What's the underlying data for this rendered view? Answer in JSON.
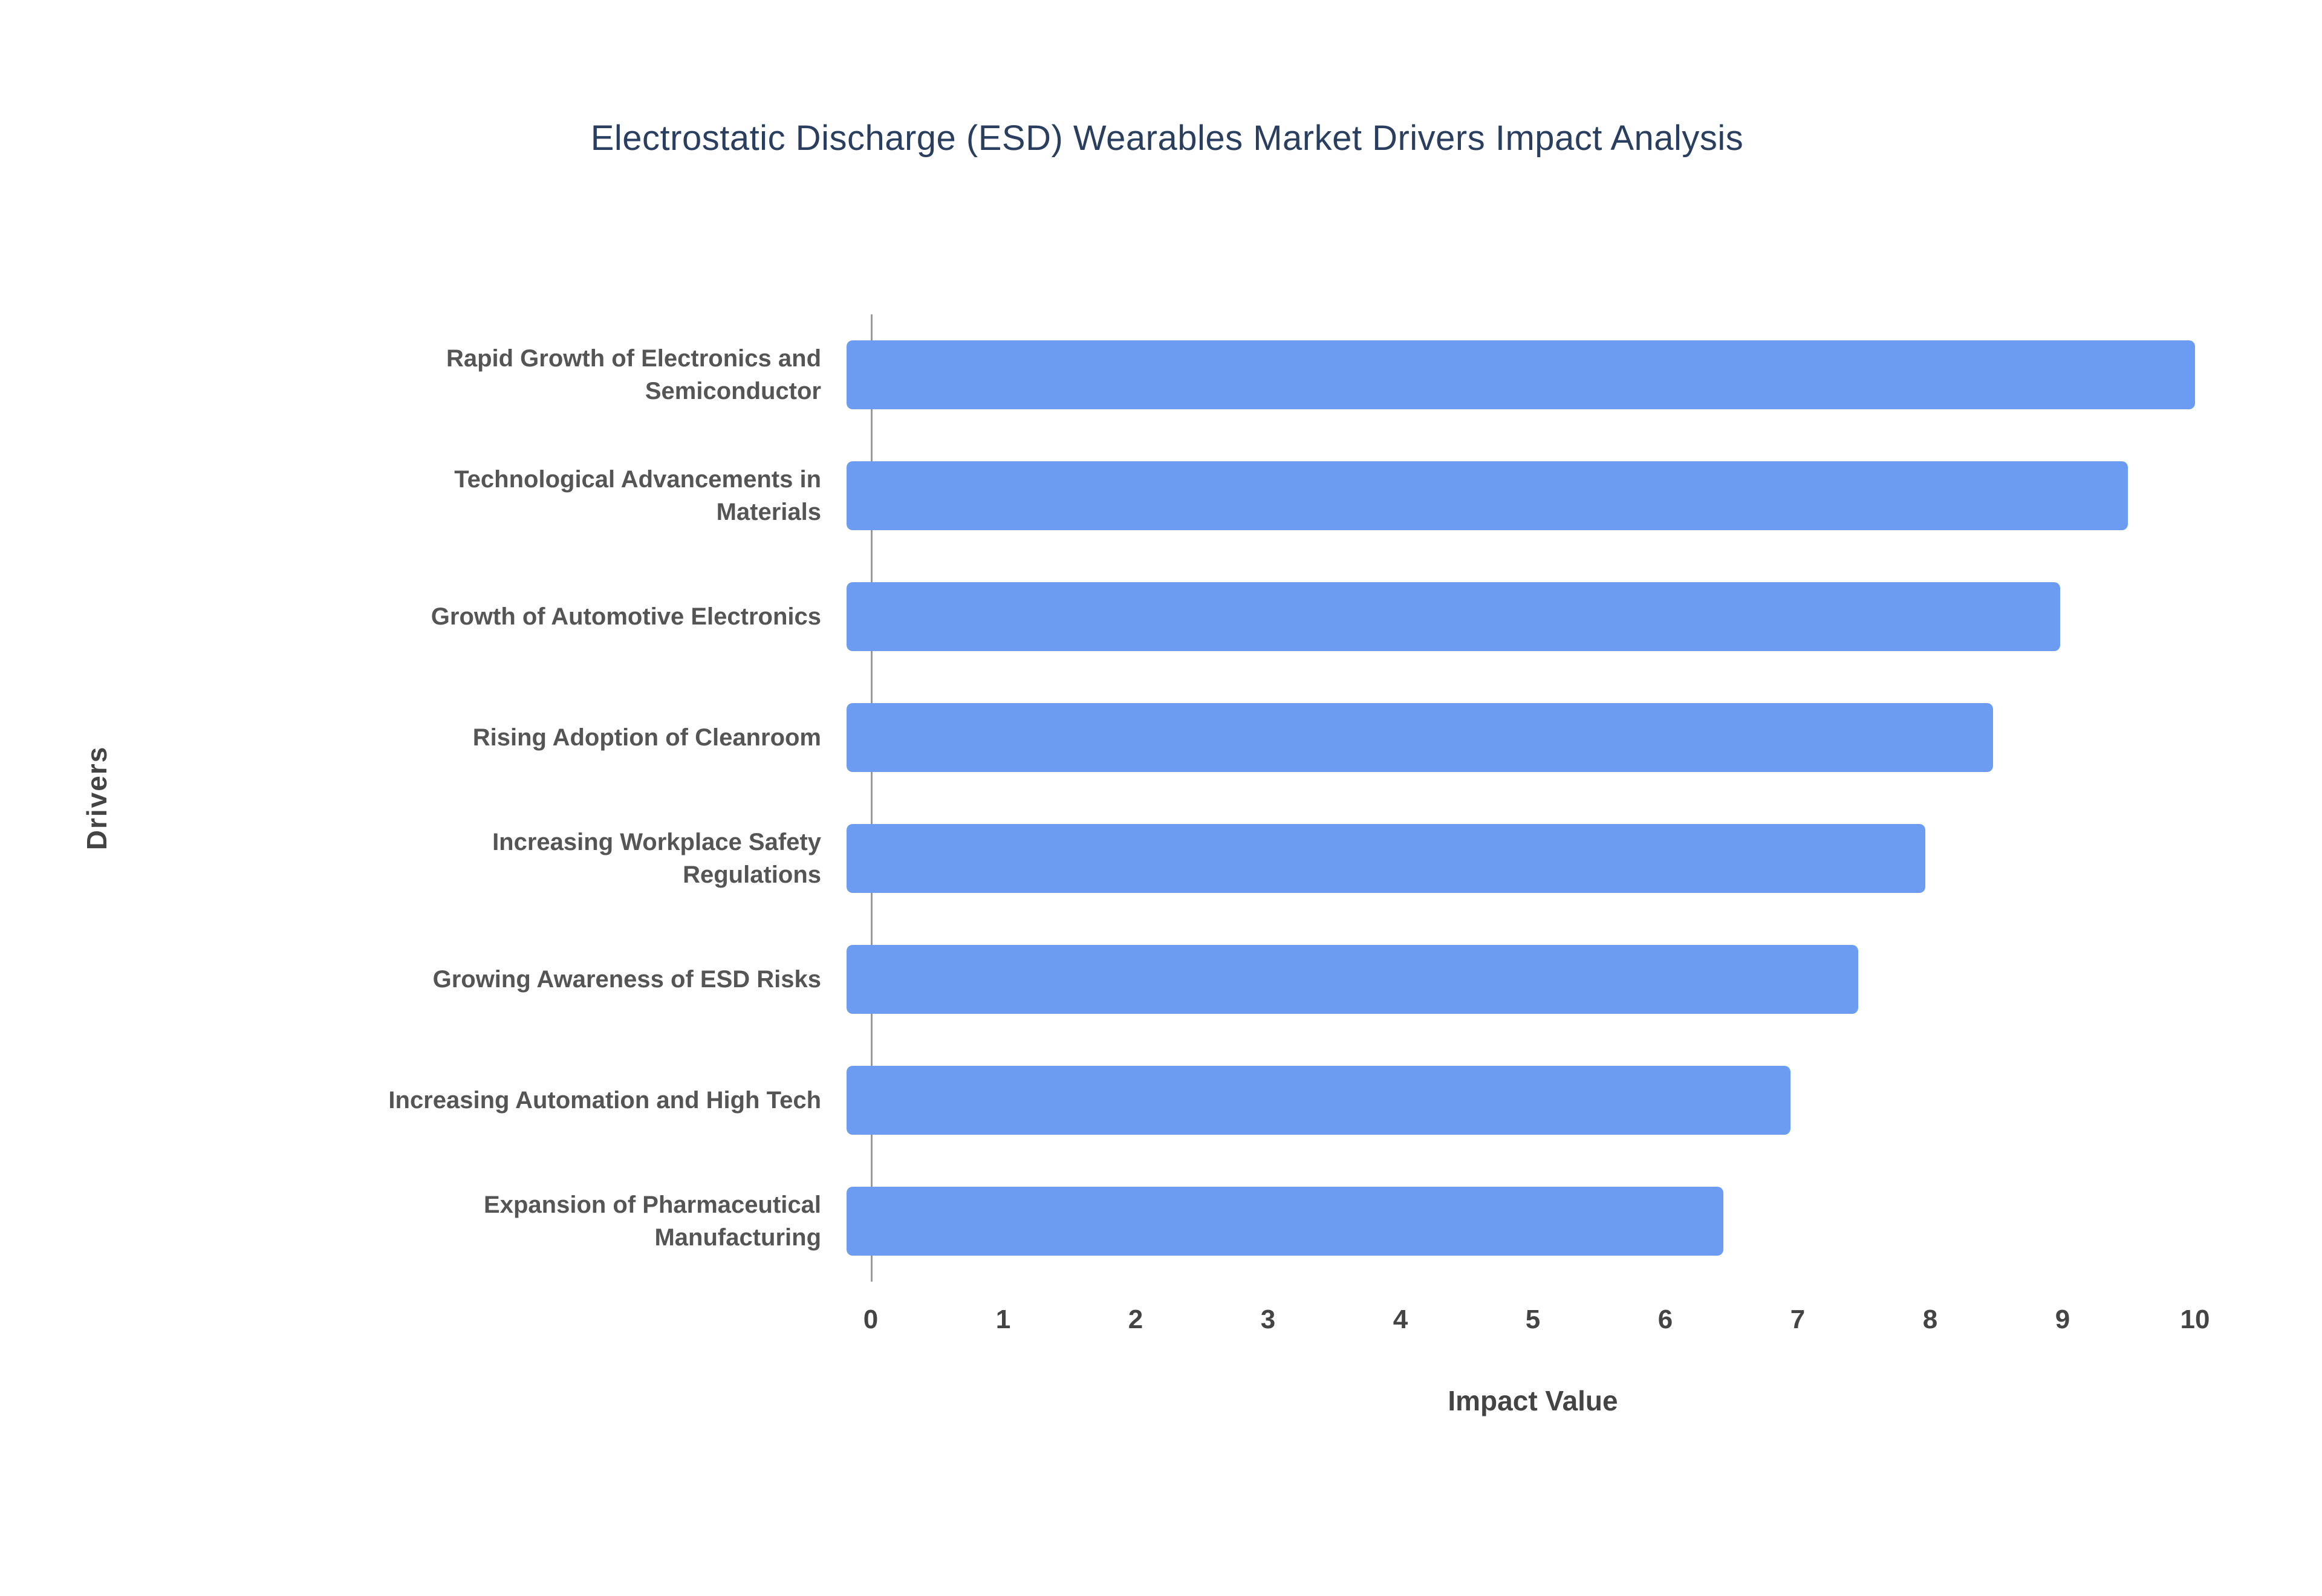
{
  "chart_data": {
    "type": "bar",
    "orientation": "horizontal",
    "title": "Electrostatic Discharge (ESD) Wearables Market Drivers Impact Analysis",
    "xlabel": "Impact Value",
    "ylabel": "Drivers",
    "categories": [
      "Rapid Growth of Electronics and Semiconductor",
      "Technological Advancements in Materials",
      "Growth of Automotive Electronics",
      "Rising Adoption of Cleanroom",
      "Increasing Workplace Safety Regulations",
      "Growing Awareness of ESD Risks",
      "Increasing Automation and High Tech",
      "Expansion of Pharmaceutical Manufacturing"
    ],
    "values": [
      10,
      9.5,
      9,
      8.5,
      8,
      7.5,
      7,
      6.5
    ],
    "xlim": [
      0,
      10
    ],
    "xticks": [
      "0",
      "1",
      "2",
      "3",
      "4",
      "5",
      "6",
      "7",
      "8",
      "9",
      "10"
    ],
    "grid": false,
    "legend": "none",
    "colors": {
      "bar": "#6c9bf2",
      "title": "#2a3f5f",
      "axis_text": "#444444",
      "category_text": "#555555",
      "axis_line": "#9a9a9a",
      "background": "#ffffff"
    }
  }
}
